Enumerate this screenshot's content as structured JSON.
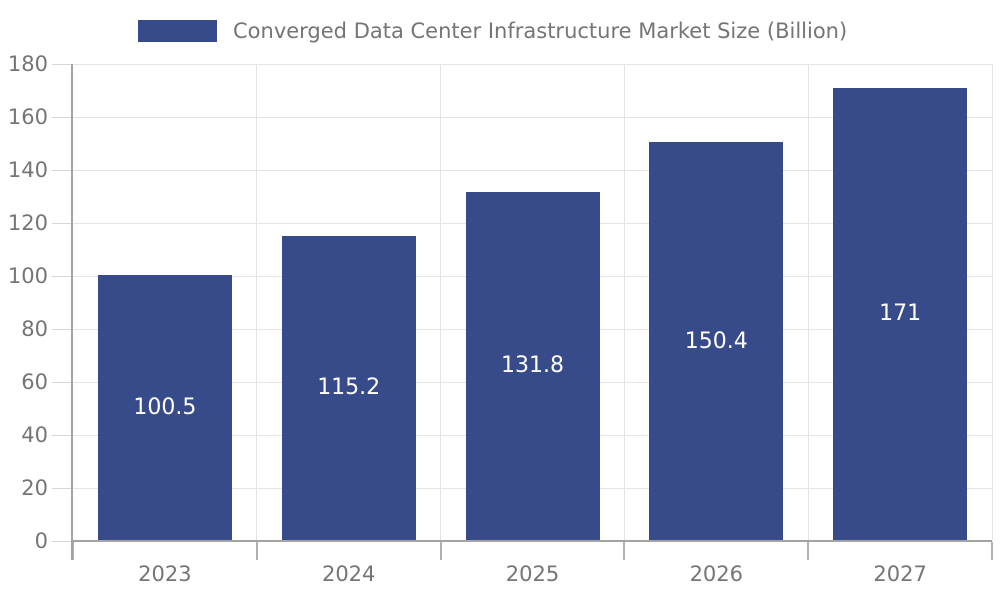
{
  "chart_data": {
    "type": "bar",
    "title": "Converged Data Center Infrastructure Market Size (Billion)",
    "categories": [
      "2023",
      "2024",
      "2025",
      "2026",
      "2027"
    ],
    "values": [
      100.5,
      115.2,
      131.8,
      150.4,
      171
    ],
    "value_labels": [
      "100.5",
      "115.2",
      "131.8",
      "150.4",
      "171"
    ],
    "ylim": [
      0,
      180
    ],
    "ytick_step": 20,
    "ytick_labels": [
      "0",
      "20",
      "40",
      "60",
      "80",
      "100",
      "120",
      "140",
      "160",
      "180"
    ],
    "grid": "on",
    "legend_position": "top",
    "colors": {
      "bar": "#374a8a",
      "axis": "#a3a3a3",
      "gridline": "#e4e4e4",
      "tick_label": "#757575",
      "value_label": "#ffffff",
      "background": "#ffffff"
    }
  }
}
